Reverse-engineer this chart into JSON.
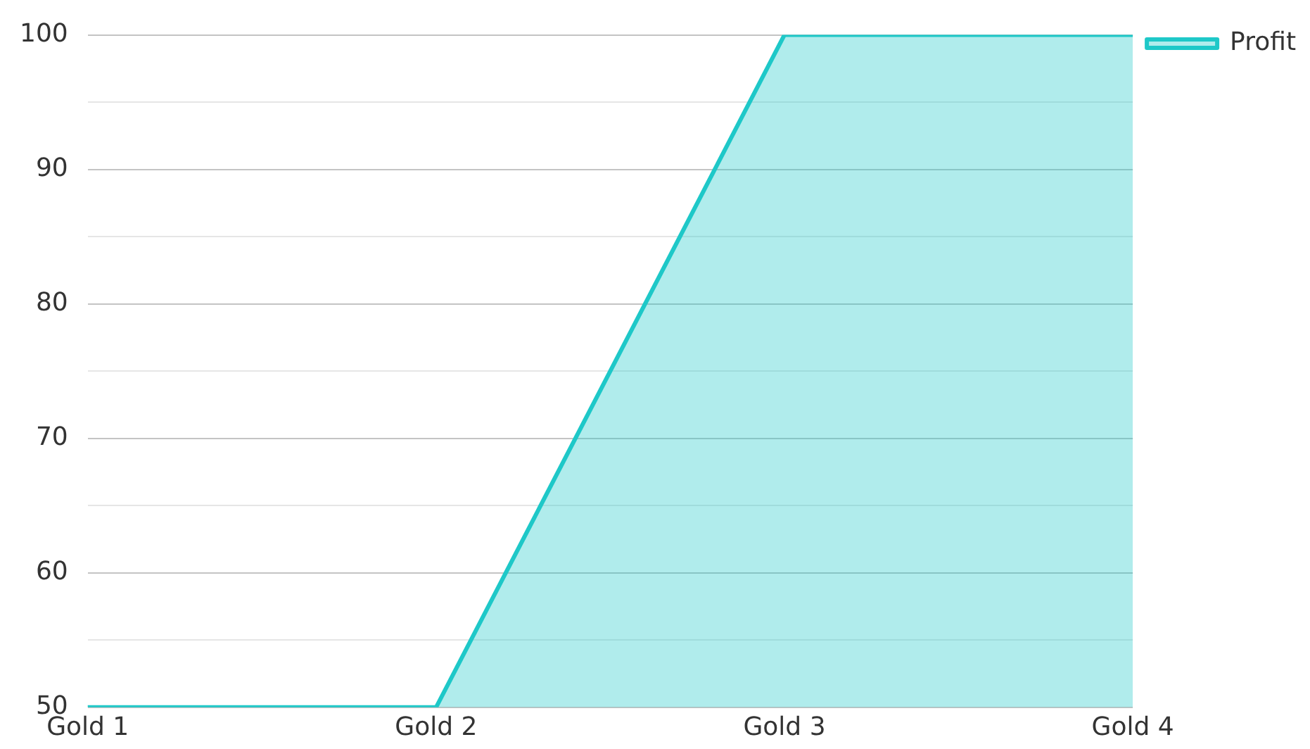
{
  "chart_data": {
    "type": "area",
    "categories": [
      "Gold 1",
      "Gold 2",
      "Gold 3",
      "Gold 4"
    ],
    "series": [
      {
        "name": "Profit",
        "color": "#1ec8c8",
        "values": [
          50,
          50,
          100,
          100
        ]
      }
    ],
    "ylim": [
      50,
      100
    ],
    "yticks": [
      50,
      {
        "value": 55,
        "label": null
      },
      60,
      {
        "value": 65,
        "label": null
      },
      70,
      {
        "value": 75,
        "label": null
      },
      80,
      {
        "value": 85,
        "label": null
      },
      90,
      {
        "value": 95,
        "label": null
      },
      100
    ],
    "grid": "y",
    "legend": "top right"
  }
}
